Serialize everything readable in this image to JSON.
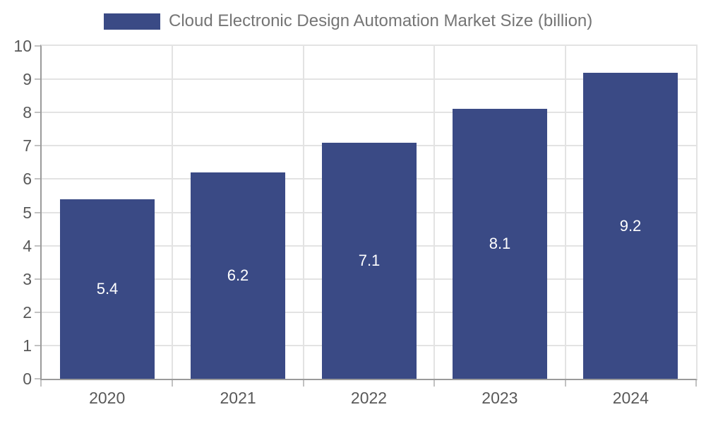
{
  "chart_data": {
    "type": "bar",
    "title": "Cloud Electronic Design Automation Market Size (billion)",
    "categories": [
      "2020",
      "2021",
      "2022",
      "2023",
      "2024"
    ],
    "values": [
      5.4,
      6.2,
      7.1,
      8.1,
      9.2
    ],
    "xlabel": "",
    "ylabel": "",
    "ylim": [
      0,
      10
    ],
    "ytick_step": 1,
    "yticks": [
      0,
      1,
      2,
      3,
      4,
      5,
      6,
      7,
      8,
      9,
      10
    ],
    "grid": true,
    "legend_position": "top-left",
    "bar_labels_inside": "center",
    "colors": {
      "bar": "#3a4a85",
      "bar_value_label": "#ffffff",
      "axis_text": "#595959",
      "legend_text": "#757575",
      "gridline": "#e3e3e3",
      "axis_line": "#9b9b9b",
      "frame_light": "#e3e3e3",
      "tick": "#c2c2c2",
      "background": "#ffffff"
    }
  }
}
